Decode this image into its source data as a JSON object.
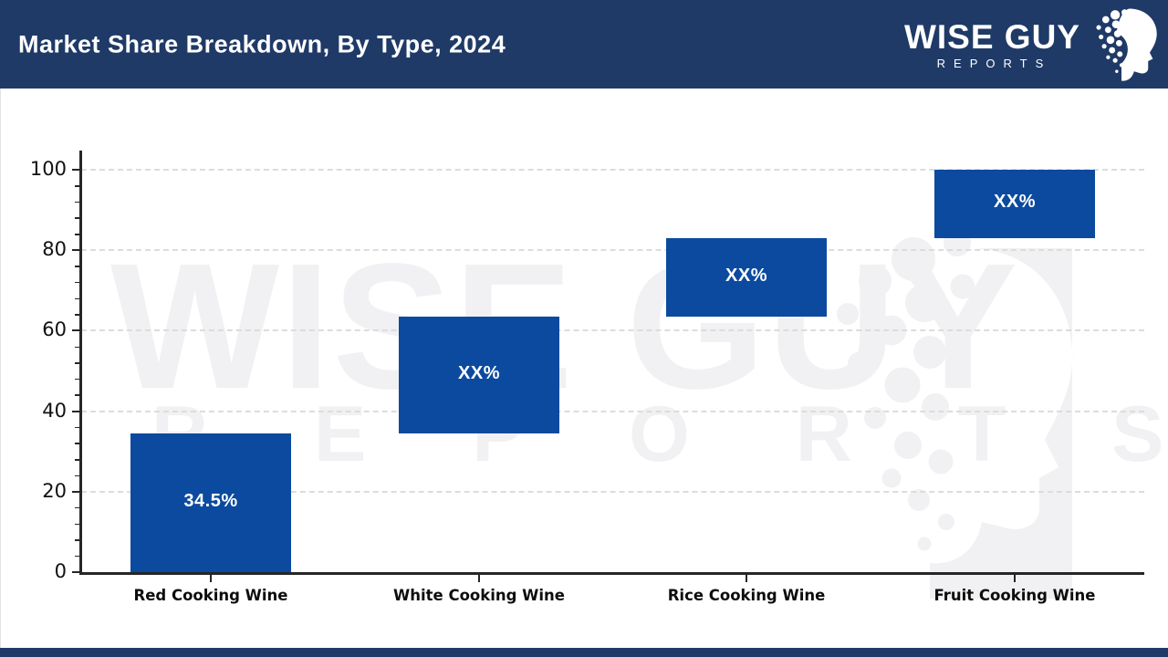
{
  "header": {
    "title": "Market Share Breakdown, By Type, 2024",
    "logo": {
      "line1": "WISE GUY",
      "line2": "REPORTS"
    }
  },
  "watermark": {
    "line1": "WISE GUY",
    "line2": "R E P O R T S"
  },
  "chart_data": {
    "type": "bar",
    "subtype": "waterfall",
    "title": "Market Share Breakdown, By Type, 2024",
    "categories": [
      "Red Cooking Wine",
      "White Cooking Wine",
      "Rice Cooking Wine",
      "Fruit Cooking Wine"
    ],
    "segments": [
      {
        "category": "Red Cooking Wine",
        "start": 0,
        "end": 34.5,
        "label": "34.5%"
      },
      {
        "category": "White Cooking Wine",
        "start": 34.5,
        "end": 63.5,
        "label": "XX%"
      },
      {
        "category": "Rice Cooking Wine",
        "start": 63.5,
        "end": 83,
        "label": "XX%"
      },
      {
        "category": "Fruit Cooking Wine",
        "start": 83,
        "end": 100,
        "label": "XX%"
      }
    ],
    "xlabel": "",
    "ylabel": "",
    "ylim": [
      0,
      100
    ],
    "yticks": [
      0,
      20,
      40,
      60,
      80,
      100
    ],
    "minor_tick_step": 4,
    "grid": "horizontal-dashed",
    "legend": "none"
  },
  "colors": {
    "header_bg": "#1f3a67",
    "footer_bg": "#1f3a67",
    "bar": "#0b4a9f",
    "bar_label": "#ffffff",
    "grid": "#dcdcdc",
    "axis": "#262626",
    "watermark": "#f1f1f3",
    "title_text": "#ffffff"
  }
}
